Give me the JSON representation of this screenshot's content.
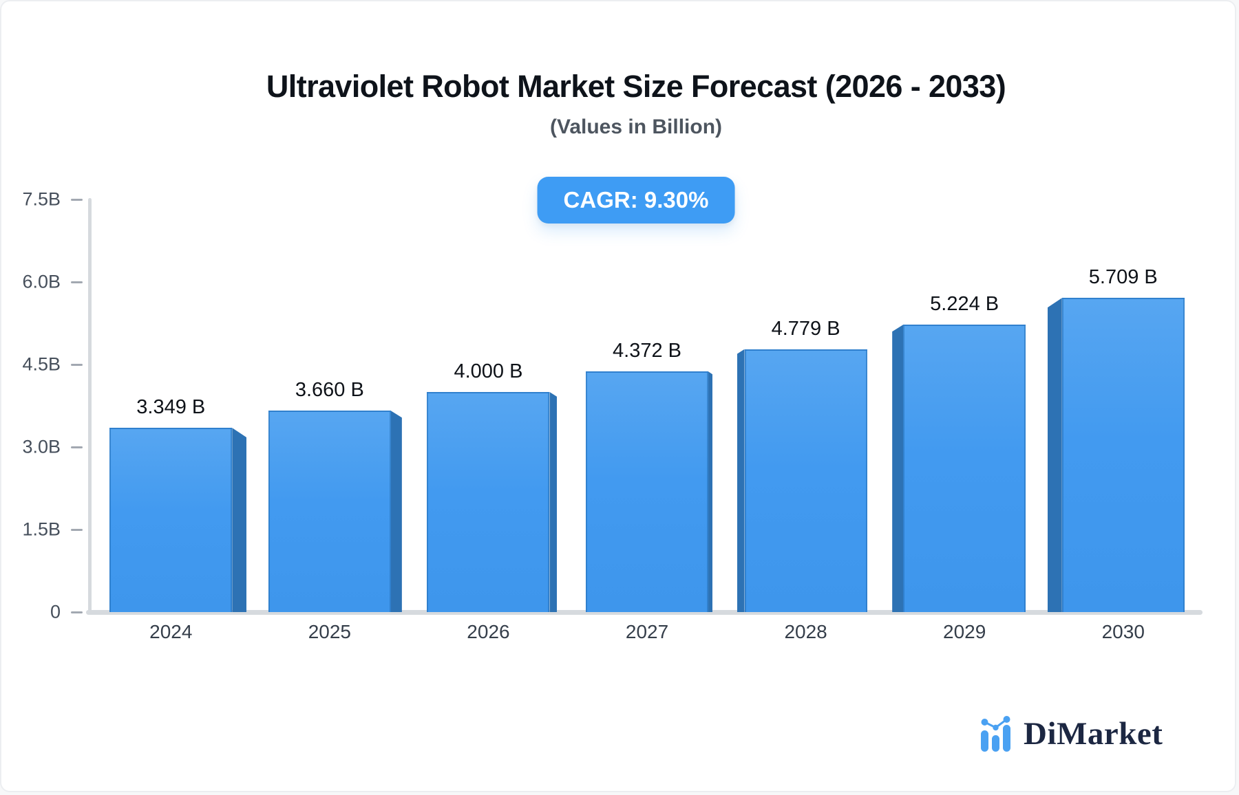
{
  "page": {
    "background": "#ffffff",
    "frame_border_color": "#eceef1"
  },
  "header": {
    "title": "Ultraviolet Robot Market Size Forecast (2026 - 2033)",
    "subtitle": "(Values in Billion)"
  },
  "badge": {
    "label": "CAGR: 9.30%",
    "bg_color": "#3e9cf4",
    "text_color": "#ffffff"
  },
  "chart_data": {
    "type": "bar",
    "title": "Ultraviolet Robot Market Size Forecast (2026 - 2033)",
    "subtitle": "(Values in Billion)",
    "annotation": "CAGR: 9.30%",
    "categories": [
      "2024",
      "2025",
      "2026",
      "2027",
      "2028",
      "2029",
      "2030"
    ],
    "values": [
      3.349,
      3.66,
      4.0,
      4.372,
      4.779,
      5.224,
      5.709
    ],
    "value_labels": [
      "3.349 B",
      "3.660 B",
      "4.000 B",
      "4.372 B",
      "4.779 B",
      "5.224 B",
      "5.709 B"
    ],
    "xlabel": "",
    "ylabel": "",
    "ylim": [
      0,
      7.5
    ],
    "yticks": {
      "values": [
        0,
        1.5,
        3.0,
        4.5,
        6.0,
        7.5
      ],
      "labels": [
        "0",
        "1.5B",
        "3.0B",
        "4.5B",
        "6.0B",
        "7.5B"
      ]
    },
    "grid": false,
    "legend": false,
    "style": {
      "bar_color_top": "#57a6f1",
      "bar_color_bottom": "#3e96ec",
      "bar_side_color": "#2d72b4",
      "bar_edge_color": "#2470b6",
      "axis_color": "#d6dade",
      "tick_dash_color": "#a2a8b1",
      "tick_label_color": "#464f5b",
      "value_label_color": "#0e1218",
      "perspective": "3d bars, side faces angle toward center bar"
    }
  },
  "logo": {
    "icon": "bar-chart-trend-icon",
    "text": "DiMarket",
    "icon_color": "#4aa1f2",
    "text_color": "#1c2742"
  }
}
